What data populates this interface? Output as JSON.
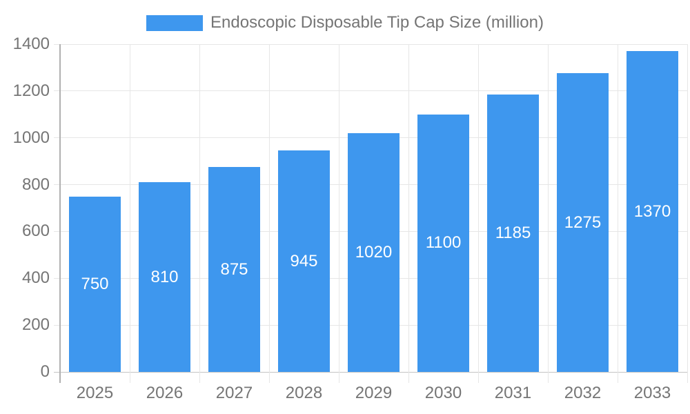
{
  "chart_data": {
    "type": "bar",
    "title": "Endoscopic Disposable Tip Cap Size (million)",
    "categories": [
      "2025",
      "2026",
      "2027",
      "2028",
      "2029",
      "2030",
      "2031",
      "2032",
      "2033"
    ],
    "values": [
      750,
      810,
      875,
      945,
      1020,
      1100,
      1185,
      1275,
      1370
    ],
    "series": [
      {
        "name": "Endoscopic Disposable Tip Cap Size (million)",
        "values": [
          750,
          810,
          875,
          945,
          1020,
          1100,
          1185,
          1275,
          1370
        ]
      }
    ],
    "xlabel": "",
    "ylabel": "",
    "ylim": [
      0,
      1400
    ],
    "ytick_step": 200,
    "ytick_labels": [
      "0",
      "200",
      "400",
      "600",
      "800",
      "1000",
      "1200",
      "1400"
    ],
    "grid": true,
    "legend_position": "top",
    "value_labels": "inside-center",
    "colors": {
      "bar": "#3e97ee",
      "value_label": "#ffffff",
      "gridline": "#e6e6e6",
      "axis_line": "#b0b0b0",
      "baseline": "#c4c4c4",
      "tick_text": "#757575",
      "legend_text": "#757575"
    }
  }
}
